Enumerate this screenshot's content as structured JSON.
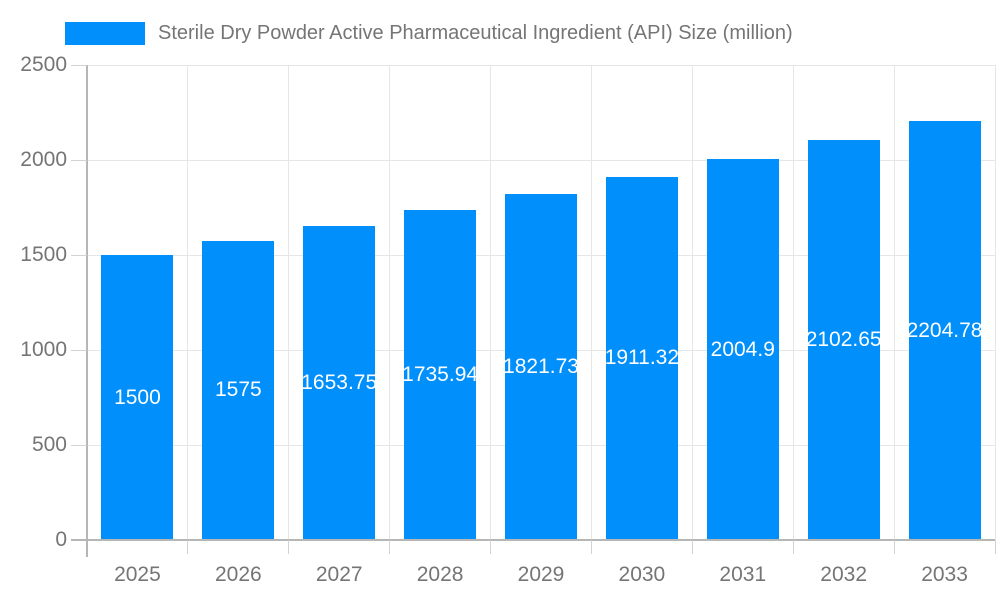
{
  "legend": {
    "label": "Sterile Dry Powder Active Pharmaceutical Ingredient (API) Size (million)"
  },
  "chart_data": {
    "type": "bar",
    "title": "Sterile Dry Powder Active Pharmaceutical Ingredient (API) Size (million)",
    "categories": [
      "2025",
      "2026",
      "2027",
      "2028",
      "2029",
      "2030",
      "2031",
      "2032",
      "2033"
    ],
    "values": [
      1500,
      1575,
      1653.75,
      1735.94,
      1821.73,
      1911.32,
      2004.9,
      2102.65,
      2204.78
    ],
    "value_labels": [
      "1500",
      "1575",
      "1653.75",
      "1735.94",
      "1821.73",
      "1911.32",
      "2004.9",
      "2102.65",
      "2204.78"
    ],
    "xlabel": "",
    "ylabel": "",
    "ylim": [
      0,
      2500
    ],
    "yticks": [
      0,
      500,
      1000,
      1500,
      2000,
      2500
    ],
    "grid": true,
    "legend_position": "top-left",
    "colors": {
      "bar": "#008FFB",
      "bar_label": "#FFFFFF",
      "axis_text": "#757575",
      "grid_line": "#E6E6E6",
      "axis_line": "#B6B6B6",
      "tick_line": "#D2D2D2",
      "background": "#FFFFFF"
    }
  }
}
